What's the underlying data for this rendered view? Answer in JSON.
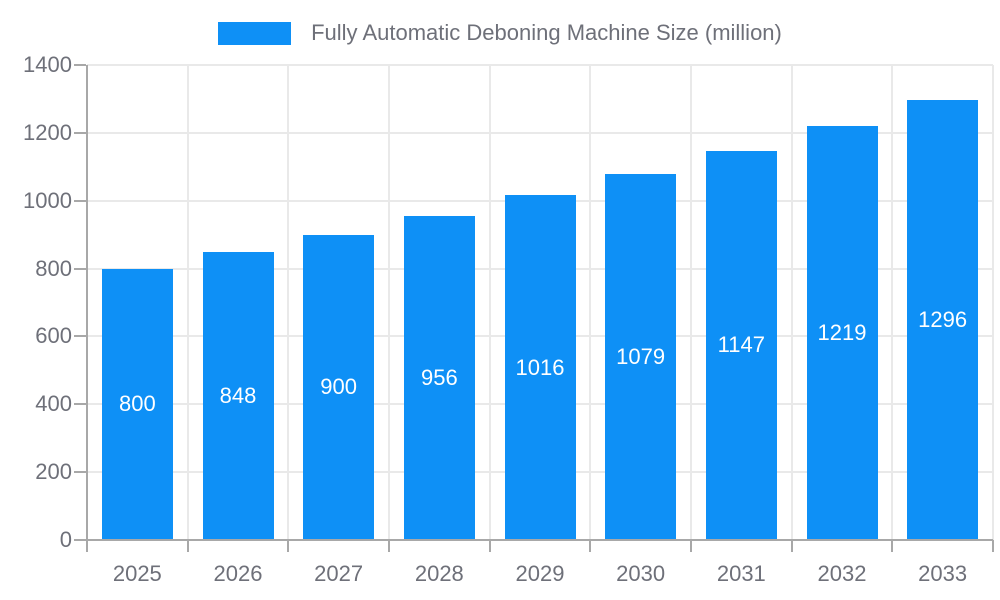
{
  "chart_data": {
    "type": "bar",
    "title": "Fully Automatic Deboning Machine Size (million)",
    "categories": [
      "2025",
      "2026",
      "2027",
      "2028",
      "2029",
      "2030",
      "2031",
      "2032",
      "2033"
    ],
    "values": [
      800,
      848,
      900,
      956,
      1016,
      1079,
      1147,
      1219,
      1296
    ],
    "xlabel": "",
    "ylabel": "",
    "ylim": [
      0,
      1400
    ],
    "ytick_step": 200,
    "grid": true,
    "legend_position": "top-center",
    "value_label_position": "inside-center",
    "colors": {
      "bar": "#0e90f6",
      "value_label": "#ffffff",
      "axis_text": "#6e7079",
      "axis_line": "#a8a8a8",
      "gridline": "#e9e9e9",
      "background": "#ffffff"
    }
  }
}
